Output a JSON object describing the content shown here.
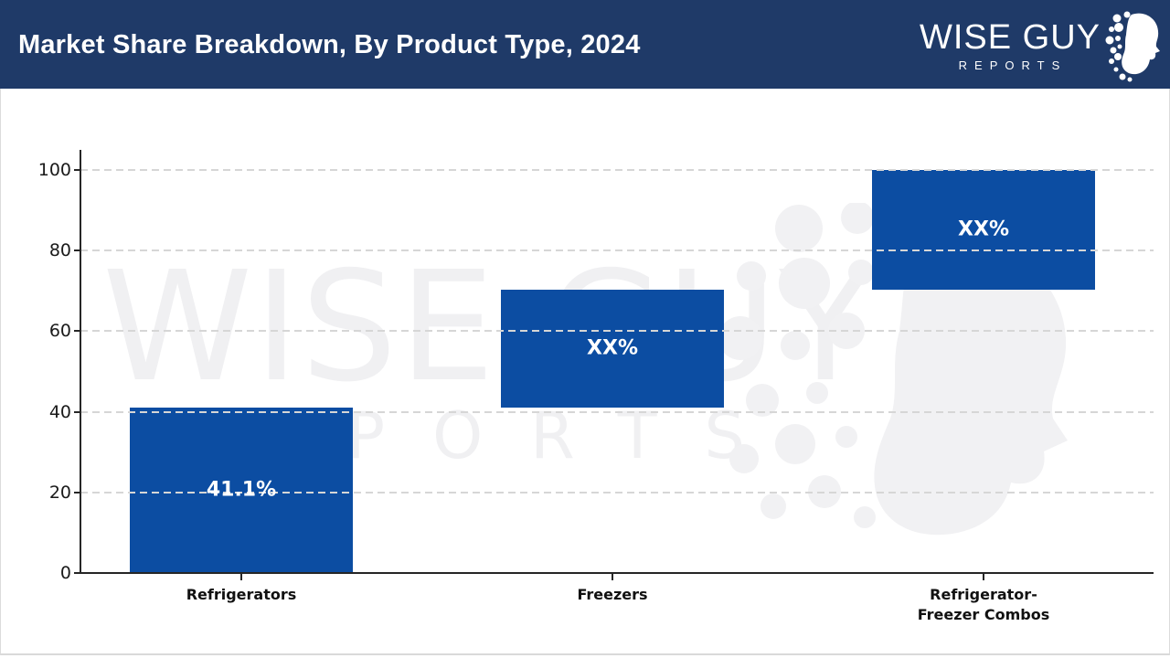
{
  "header": {
    "title": "Market Share Breakdown, By Product Type, 2024",
    "logo": {
      "line1": "WISE GUY",
      "line2": "REPORTS"
    }
  },
  "watermark": {
    "line1": "WISE GUY",
    "line2": "REPORTS"
  },
  "colors": {
    "header_bg": "#1f3a68",
    "bar_blue": "#0c4da2",
    "bar_label": "#ffffff",
    "gridline": "#d6d6d6",
    "watermark": "#f0f0f2"
  },
  "chart_data": {
    "type": "bar",
    "subtype": "stepped-waterfall",
    "title": "Market Share Breakdown, By Product Type, 2024",
    "xlabel": "",
    "ylabel": "",
    "categories": [
      "Refrigerators",
      "Freezers",
      "Refrigerator-\nFreezer Combos"
    ],
    "segments": [
      {
        "category": "Refrigerators",
        "start": 0,
        "end": 41.1,
        "label": "41.1%"
      },
      {
        "category": "Freezers",
        "start": 41.1,
        "end": 70.3,
        "label": "XX%"
      },
      {
        "category": "Refrigerator-\nFreezer Combos",
        "start": 70.3,
        "end": 100,
        "label": "XX%"
      }
    ],
    "yticks": [
      0,
      20,
      40,
      60,
      80,
      100
    ],
    "ylim": [
      0,
      105
    ],
    "grid": "horizontal-dashed",
    "legend": "none",
    "bar_color": "#0c4da2"
  }
}
